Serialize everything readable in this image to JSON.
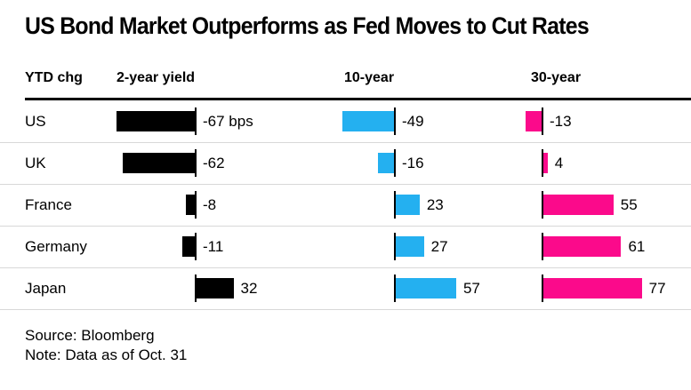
{
  "chart_data": {
    "type": "bar",
    "orientation": "horizontal",
    "title": "US Bond Market Outperforms as Fed Moves to Cut Rates",
    "unit": "bps",
    "ytd_label": "YTD chg",
    "categories": [
      "US",
      "UK",
      "France",
      "Germany",
      "Japan"
    ],
    "series": [
      {
        "name": "2-year yield",
        "color": "#000000",
        "values": [
          -67,
          -62,
          -8,
          -11,
          32
        ]
      },
      {
        "name": "10-year",
        "color": "#24b0f0",
        "values": [
          -49,
          -16,
          23,
          27,
          57
        ]
      },
      {
        "name": "30-year",
        "color": "#fb0a8b",
        "values": [
          -13,
          4,
          55,
          61,
          77
        ]
      }
    ],
    "rows": [
      {
        "country": "US",
        "values": [
          -67,
          -49,
          -13
        ],
        "value_labels": [
          "-67 bps",
          "-49",
          "-13"
        ]
      },
      {
        "country": "UK",
        "values": [
          -62,
          -16,
          4
        ],
        "value_labels": [
          "-62",
          "-16",
          "4"
        ]
      },
      {
        "country": "France",
        "values": [
          -8,
          23,
          55
        ],
        "value_labels": [
          "-8",
          "23",
          "55"
        ]
      },
      {
        "country": "Germany",
        "values": [
          -11,
          27,
          61
        ],
        "value_labels": [
          "-11",
          "27",
          "61"
        ]
      },
      {
        "country": "Japan",
        "values": [
          32,
          57,
          77
        ],
        "value_labels": [
          "32",
          "57",
          "77"
        ]
      }
    ],
    "grid": false,
    "legend_position": "column-headers",
    "source": "Source: Bloomberg",
    "note": "Note: Data as of Oct. 31"
  },
  "colors": {
    "bar_black": "#000000",
    "bar_blue": "#24b0f0",
    "bar_pink": "#fb0a8b",
    "separator": "#d8d8d8",
    "rule": "#000000"
  }
}
